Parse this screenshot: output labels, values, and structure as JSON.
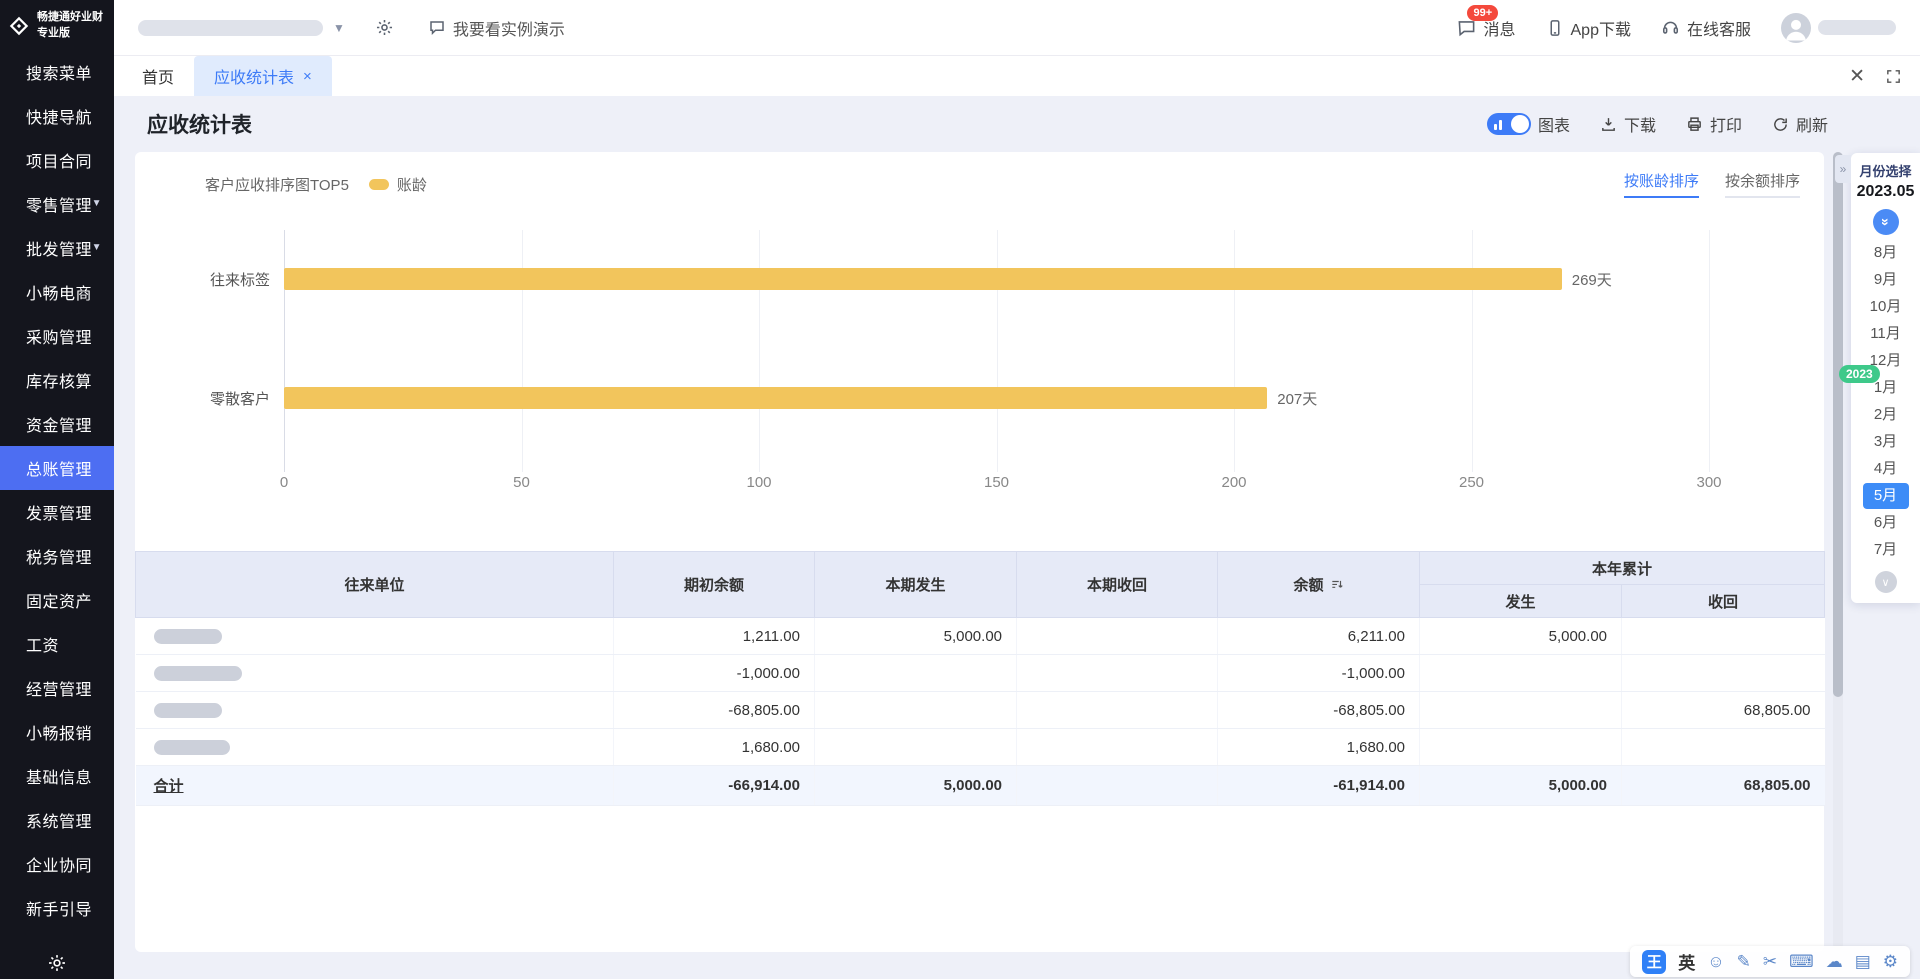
{
  "colors": {
    "accent": "#3d7bf7",
    "bar_yellow": "#f2c55c",
    "sidebar_bg": "#14151d",
    "sidebar_active": "#4d6ef2",
    "badge_red": "#f4493c",
    "badge_green": "#3ec98a",
    "table_header_bg": "#e6eaf7"
  },
  "brand": {
    "name": "畅捷通好业财",
    "edition": "专业版"
  },
  "topbar": {
    "demo": "我要看实例演示",
    "messages": "消息",
    "messages_badge": "99+",
    "app_download": "App下载",
    "online_support": "在线客服"
  },
  "tabbar": {
    "tabs": [
      {
        "label": "首页",
        "active": false,
        "closable": false
      },
      {
        "label": "应收统计表",
        "active": true,
        "closable": true
      }
    ]
  },
  "sidebar": {
    "items": [
      {
        "label": "搜索菜单"
      },
      {
        "label": "快捷导航"
      },
      {
        "label": "项目合同"
      },
      {
        "label": "零售管理",
        "expandable": true
      },
      {
        "label": "批发管理",
        "expandable": true
      },
      {
        "label": "小畅电商"
      },
      {
        "label": "采购管理"
      },
      {
        "label": "库存核算"
      },
      {
        "label": "资金管理"
      },
      {
        "label": "总账管理",
        "active": true
      },
      {
        "label": "发票管理"
      },
      {
        "label": "税务管理"
      },
      {
        "label": "固定资产"
      },
      {
        "label": "工资"
      },
      {
        "label": "经营管理"
      },
      {
        "label": "小畅报销"
      },
      {
        "label": "基础信息"
      },
      {
        "label": "系统管理"
      },
      {
        "label": "企业协同"
      },
      {
        "label": "新手引导"
      }
    ]
  },
  "page": {
    "title": "应收统计表",
    "chart_toggle": "图表",
    "download": "下载",
    "print": "打印",
    "refresh": "刷新",
    "sort_by_aging": "按账龄排序",
    "sort_by_balance": "按余额排序"
  },
  "chart_data": {
    "type": "bar",
    "orientation": "horizontal",
    "title": "客户应收排序图TOP5",
    "legend": [
      {
        "label": "账龄",
        "color": "#f2c55c"
      }
    ],
    "categories": [
      "往来标签",
      "零散客户"
    ],
    "values": [
      269,
      207
    ],
    "unit": "天",
    "value_labels": [
      "269天",
      "207天"
    ],
    "xlabel": "",
    "ylabel": "",
    "xlim": [
      0,
      300
    ],
    "x_ticks": [
      0,
      50,
      100,
      150,
      200,
      250,
      300
    ],
    "grid": true,
    "legend_position": "top-left"
  },
  "table": {
    "headers": {
      "party": "往来单位",
      "opening": "期初余额",
      "current": "本期发生",
      "received": "本期收回",
      "balance": "余额",
      "ytd": "本年累计",
      "ytd_occur": "发生",
      "ytd_recv": "收回"
    },
    "rows": [
      {
        "name_redacted": true,
        "blur_width": 68,
        "opening": "1,211.00",
        "current": "5,000.00",
        "received": "",
        "balance": "6,211.00",
        "ytd_occur": "5,000.00",
        "ytd_recv": ""
      },
      {
        "name_redacted": true,
        "blur_width": 88,
        "opening": "-1,000.00",
        "current": "",
        "received": "",
        "balance": "-1,000.00",
        "ytd_occur": "",
        "ytd_recv": ""
      },
      {
        "name_redacted": true,
        "blur_width": 68,
        "opening": "-68,805.00",
        "current": "",
        "received": "",
        "balance": "-68,805.00",
        "ytd_occur": "",
        "ytd_recv": "68,805.00"
      },
      {
        "name_redacted": true,
        "blur_width": 76,
        "opening": "1,680.00",
        "current": "",
        "received": "",
        "balance": "1,680.00",
        "ytd_occur": "",
        "ytd_recv": ""
      }
    ],
    "total": {
      "label": "合计",
      "opening": "-66,914.00",
      "current": "5,000.00",
      "received": "",
      "balance": "-61,914.00",
      "ytd_occur": "5,000.00",
      "ytd_recv": "68,805.00"
    }
  },
  "month_panel": {
    "title": "月份选择",
    "current": "2023.05",
    "year_badge": "2023",
    "badge_before": "1月",
    "months": [
      "8月",
      "9月",
      "10月",
      "11月",
      "12月",
      "1月",
      "2月",
      "3月",
      "4月",
      "5月",
      "6月",
      "7月"
    ],
    "selected": "5月"
  },
  "ime": {
    "logo": "王",
    "lang": "英",
    "icons": [
      "smiley-icon",
      "pen-icon",
      "scissors-icon",
      "keyboard-icon",
      "cloud-icon",
      "toolbox-icon",
      "settings-icon"
    ]
  }
}
